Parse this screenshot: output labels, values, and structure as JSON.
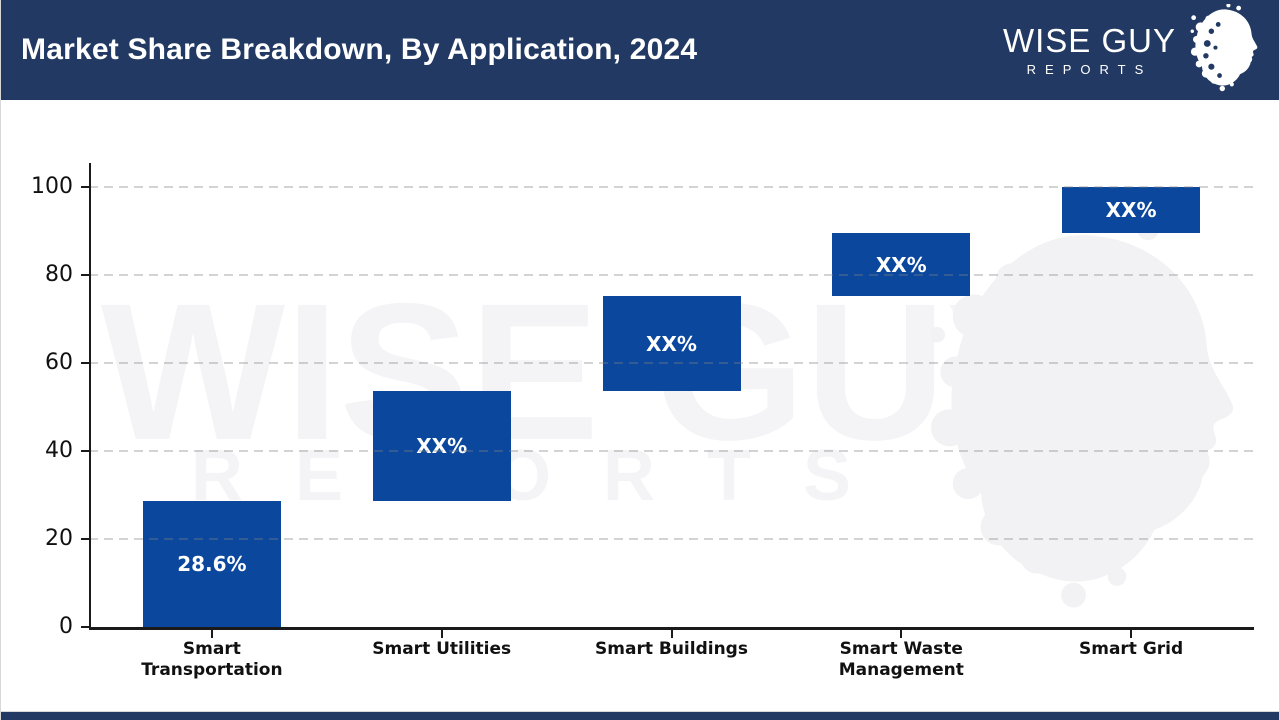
{
  "header": {
    "title": "Market Share Breakdown, By Application, 2024",
    "bg_color": "#223A63",
    "logo": {
      "line1": "WISE GUY",
      "line2": "REPORTS"
    }
  },
  "watermark": {
    "line1": "WISE GUY",
    "line2": "REPORTS"
  },
  "chart_data": {
    "type": "bar",
    "subtype": "waterfall",
    "title": "Market Share Breakdown, By Application, 2024",
    "categories": [
      "Smart Transportation",
      "Smart Utilities",
      "Smart Buildings",
      "Smart Waste Management",
      "Smart Grid"
    ],
    "segments": [
      {
        "start": 0,
        "end": 28.6,
        "label": "28.6%"
      },
      {
        "start": 28.6,
        "end": 53.6,
        "label": "XX%"
      },
      {
        "start": 53.6,
        "end": 75.2,
        "label": "XX%"
      },
      {
        "start": 75.2,
        "end": 89.5,
        "label": "XX%"
      },
      {
        "start": 89.5,
        "end": 100,
        "label": "XX%"
      }
    ],
    "xlabel": "",
    "ylabel": "",
    "yticks": [
      0,
      20,
      40,
      60,
      80,
      100
    ],
    "ylim": [
      0,
      105
    ],
    "grid": "horizontal-dashed",
    "legend": false,
    "bar_color": "#0B479D",
    "label_color": "#FFFFFF"
  }
}
